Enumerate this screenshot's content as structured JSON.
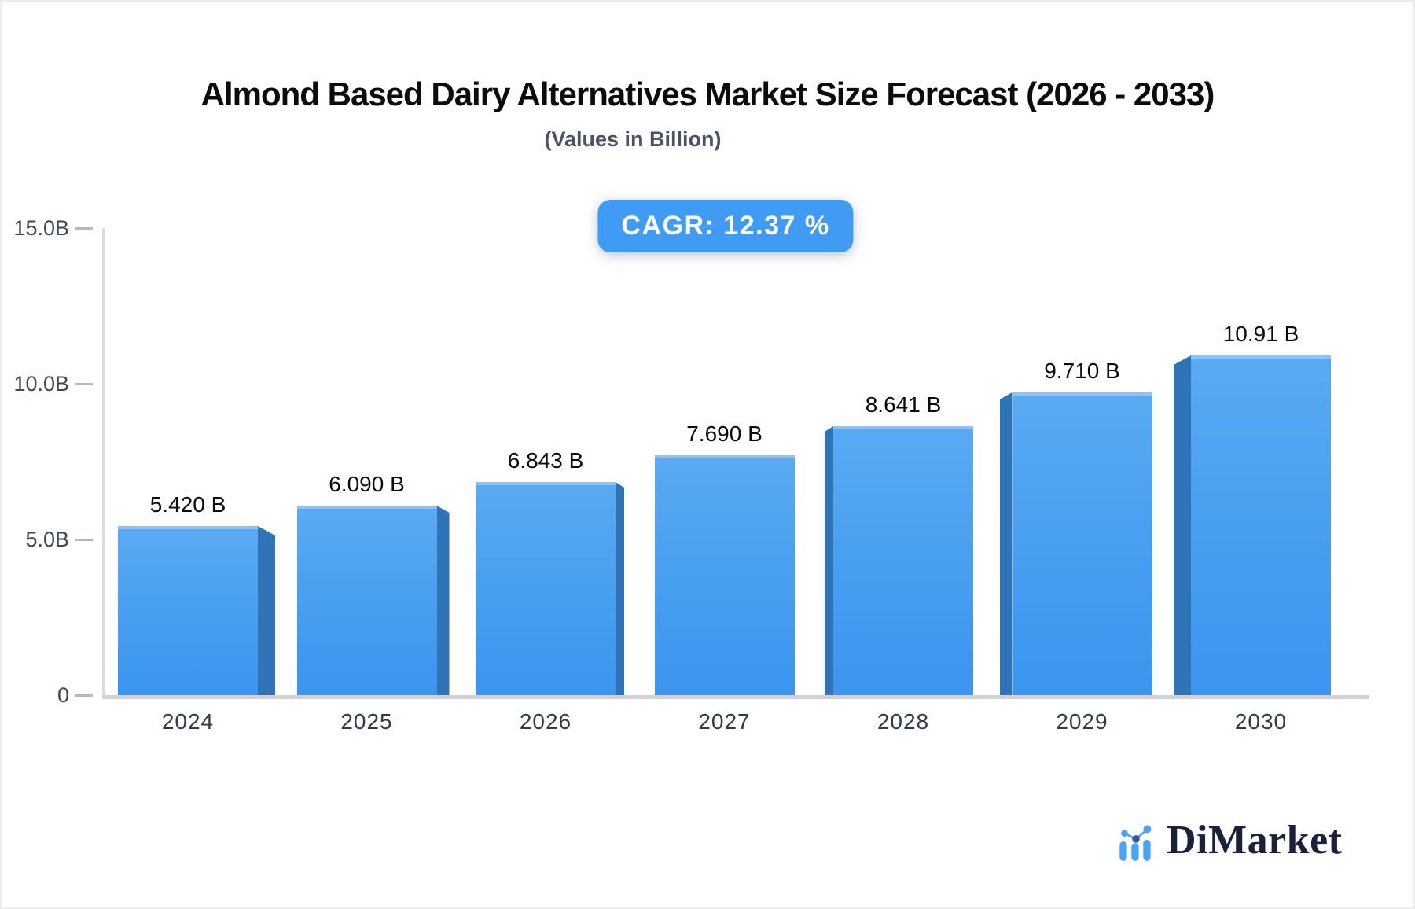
{
  "header": {
    "title": "Almond Based Dairy Alternatives Market Size Forecast (2026 - 2033)",
    "subtitle": "(Values in Billion)",
    "cagr_label": "CAGR: 12.37 %"
  },
  "chart_data": {
    "type": "bar",
    "title": "Almond Based Dairy Alternatives Market Size Forecast (2026 - 2033)",
    "subtitle": "(Values in Billion)",
    "cagr": "12.37 %",
    "categories": [
      "2024",
      "2025",
      "2026",
      "2027",
      "2028",
      "2029",
      "2030"
    ],
    "values": [
      5.42,
      6.09,
      6.843,
      7.69,
      8.641,
      9.71,
      10.91
    ],
    "value_labels": [
      "5.420 B",
      "6.090 B",
      "6.843 B",
      "7.690 B",
      "8.641 B",
      "9.710 B",
      "10.91 B"
    ],
    "y_ticks": [
      {
        "label": "15.0B",
        "value": 15
      },
      {
        "label": "10.0B",
        "value": 10
      },
      {
        "label": "5.0B",
        "value": 5
      },
      {
        "label": "0",
        "value": 0
      }
    ],
    "ylim": [
      0,
      15
    ],
    "grid": false,
    "legend": "none",
    "style": "3d-perspective-bars",
    "colors": {
      "bar_top": "#5aaaf2",
      "bar_bottom": "#3b95ef",
      "bar_side": "#2e74b6",
      "axis_line": "#ced1d7",
      "tick_text": "#3d4657",
      "value_text": "#0b0b0d",
      "badge_bg": "#3f9bf4",
      "badge_text": "#ffffff"
    }
  },
  "footer": {
    "logo_text": "DiMarket",
    "logo_icon": "bar-chart-trend-icon",
    "logo_colors": {
      "bars": "#4aa3f7",
      "mid_dot": "#2a5a9e",
      "text": "#1a2138"
    }
  }
}
